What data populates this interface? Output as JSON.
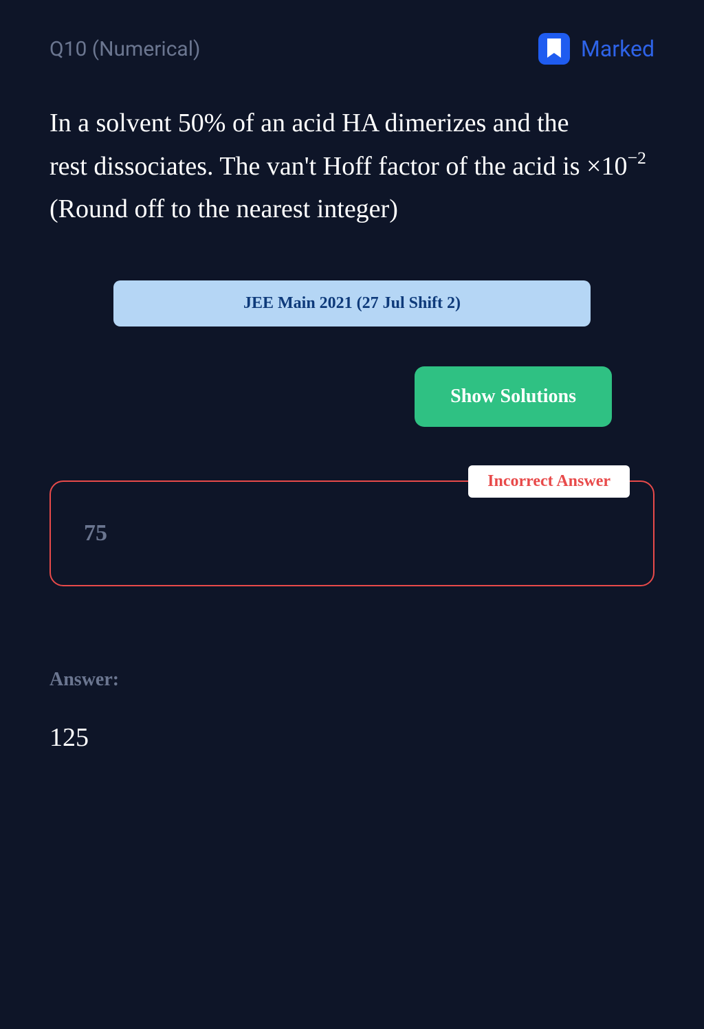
{
  "header": {
    "question_label": "Q10 (Numerical)",
    "marked_label": "Marked"
  },
  "question": {
    "line1": "In a solvent 50% of an acid HA dimerizes and the",
    "line2_prefix": "rest dissociates. The van't Hoff factor of the acid is ×10",
    "line2_exponent": "−2",
    "line3": "(Round off to the nearest integer)"
  },
  "exam_tag": "JEE Main 2021 (27 Jul Shift 2)",
  "show_solutions_label": "Show Solutions",
  "user_answer": {
    "badge_label": "Incorrect Answer",
    "value": "75"
  },
  "correct_answer": {
    "label": "Answer:",
    "value": "125"
  },
  "colors": {
    "background": "#0e1528",
    "muted_text": "#6b7690",
    "accent_blue": "#2e63e8",
    "bookmark_bg": "#1f5cf0",
    "exam_tag_bg": "#b5d6f5",
    "exam_tag_text": "#0e3a7a",
    "solutions_btn": "#2fc183",
    "error_red": "#e84a4a",
    "badge_bg": "#ffffff"
  }
}
